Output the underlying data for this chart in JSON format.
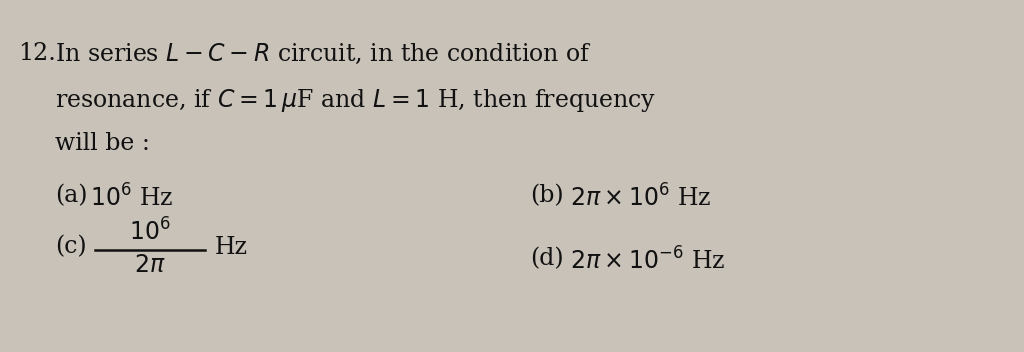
{
  "background_color": "#c8c2b8",
  "text_color": "#111111",
  "figsize": [
    10.24,
    3.52
  ],
  "dpi": 100,
  "question_number": "12.",
  "line1": "In series $L-C-R$ circuit, in the condition of",
  "line2": "resonance, if $C = 1\\,\\mu$F and $L = 1$ H, then frequency",
  "line3": "will be :",
  "opt_a_label": "(a)",
  "opt_a_val": "$10^6$ Hz",
  "opt_b_label": "(b)",
  "opt_b_val": "$2\\pi \\times 10^6$ Hz",
  "opt_c_label": "(c)",
  "opt_c_num": "$10^6$",
  "opt_c_den": "$2\\pi$",
  "opt_c_unit": "Hz",
  "opt_d_label": "(d)",
  "opt_d_val": "$2\\pi \\times 10^{-6}$ Hz",
  "fs": 17,
  "fs_small": 15
}
